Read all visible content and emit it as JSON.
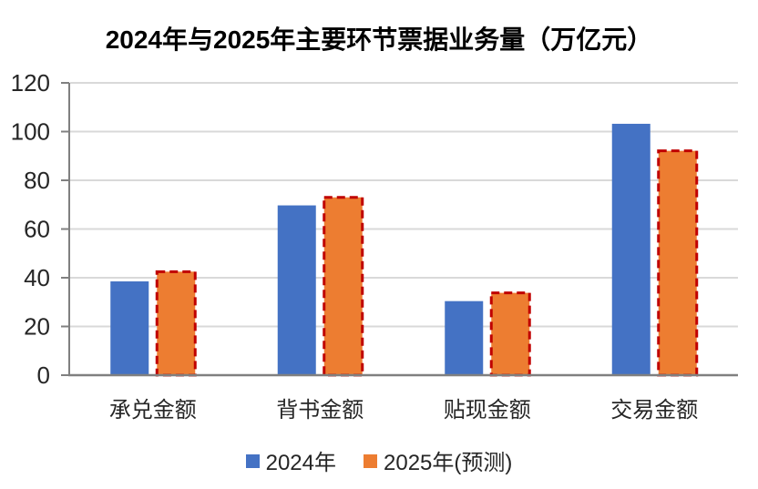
{
  "chart_data": {
    "type": "bar",
    "title": "2024年与2025年主要环节票据业务量（万亿元）",
    "categories": [
      "承兑金额",
      "背书金额",
      "贴现金额",
      "交易金额"
    ],
    "series": [
      {
        "name": "2024年",
        "color": "#4472C4",
        "values": [
          38.5,
          69.7,
          30.4,
          103.2
        ]
      },
      {
        "name": "2025年(预测)",
        "color": "#ED7D31",
        "values": [
          42.5,
          73.0,
          33.8,
          92.1
        ],
        "border_color": "#C00000",
        "border_style": "dashed"
      }
    ],
    "xlabel": "",
    "ylabel": "",
    "ylim": [
      0,
      120
    ],
    "y_ticks": [
      0,
      20,
      40,
      60,
      80,
      100,
      120
    ],
    "grid": true,
    "legend_position": "bottom",
    "colors": {
      "axis": "#808080",
      "gridline": "#D9D9D9",
      "tick_label": "#262626",
      "category_label": "#262626",
      "background": "#FFFFFF"
    }
  }
}
